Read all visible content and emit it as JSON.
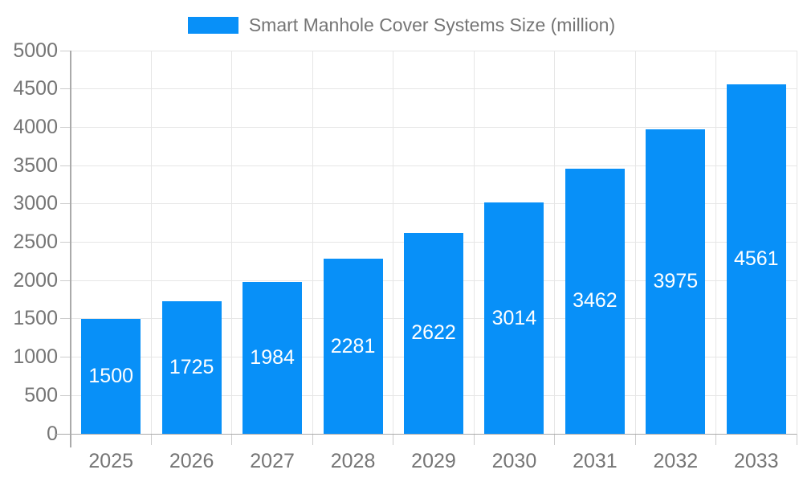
{
  "legend": {
    "label": "Smart Manhole Cover Systems Size (million)"
  },
  "chart_data": {
    "type": "bar",
    "title": "Smart Manhole Cover Systems Size (million)",
    "categories": [
      "2025",
      "2026",
      "2027",
      "2028",
      "2029",
      "2030",
      "2031",
      "2032",
      "2033"
    ],
    "values": [
      1500,
      1725,
      1984,
      2281,
      2622,
      3014,
      3462,
      3975,
      4561
    ],
    "xlabel": "",
    "ylabel": "",
    "ylim": [
      0,
      5000
    ],
    "ytick_step": 500,
    "grid": true,
    "legend_position": "top",
    "value_labels": "inside-center",
    "colors": {
      "bar": "#0890F8",
      "value_label": "#FFFFFF",
      "axis_text": "#757575",
      "grid_line": "#E6E6E6",
      "axis_line": "#AAAAAA",
      "tick_line": "#CCCCCC"
    }
  }
}
